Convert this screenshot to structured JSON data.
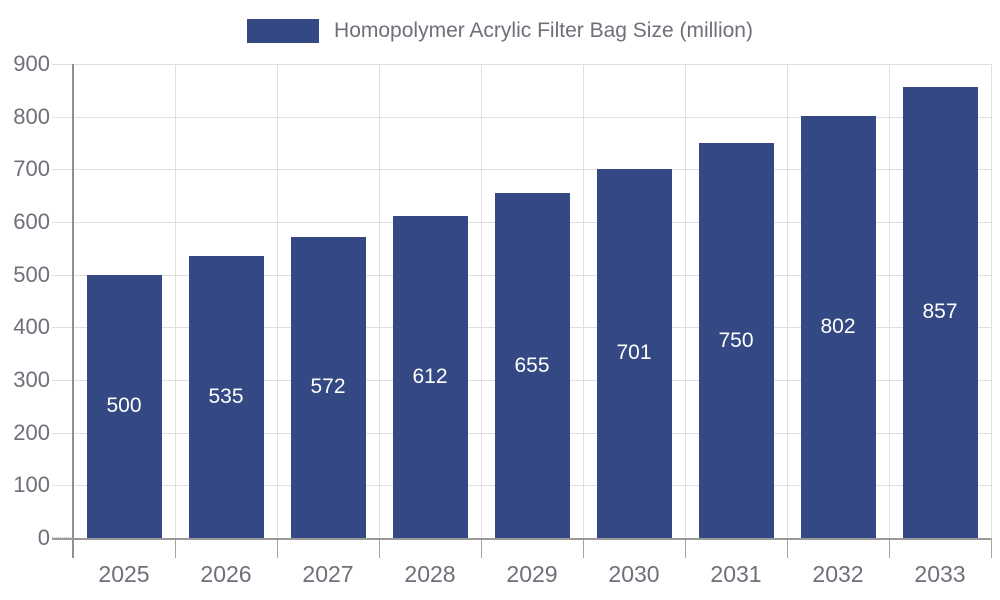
{
  "legend": {
    "items": [
      {
        "label": "Homopolymer Acrylic Filter Bag Size (million)",
        "swatch_color": "#344883"
      }
    ]
  },
  "chart_data": {
    "type": "bar",
    "title": "Homopolymer Acrylic Filter Bag Size (million)",
    "categories": [
      "2025",
      "2026",
      "2027",
      "2028",
      "2029",
      "2030",
      "2031",
      "2032",
      "2033"
    ],
    "values": [
      500,
      535,
      572,
      612,
      655,
      701,
      750,
      802,
      857
    ],
    "xlabel": "",
    "ylabel": "",
    "ylim": [
      0,
      900
    ],
    "ytick_interval": 100,
    "ytick_labels": [
      "0",
      "100",
      "200",
      "300",
      "400",
      "500",
      "600",
      "700",
      "800",
      "900"
    ],
    "grid": true,
    "legend_position": "top",
    "bar_color": "#344883",
    "value_label_color": "#ffffff",
    "axis_text_color": "#6e7079",
    "gridline_color": "#e0e0e0"
  }
}
